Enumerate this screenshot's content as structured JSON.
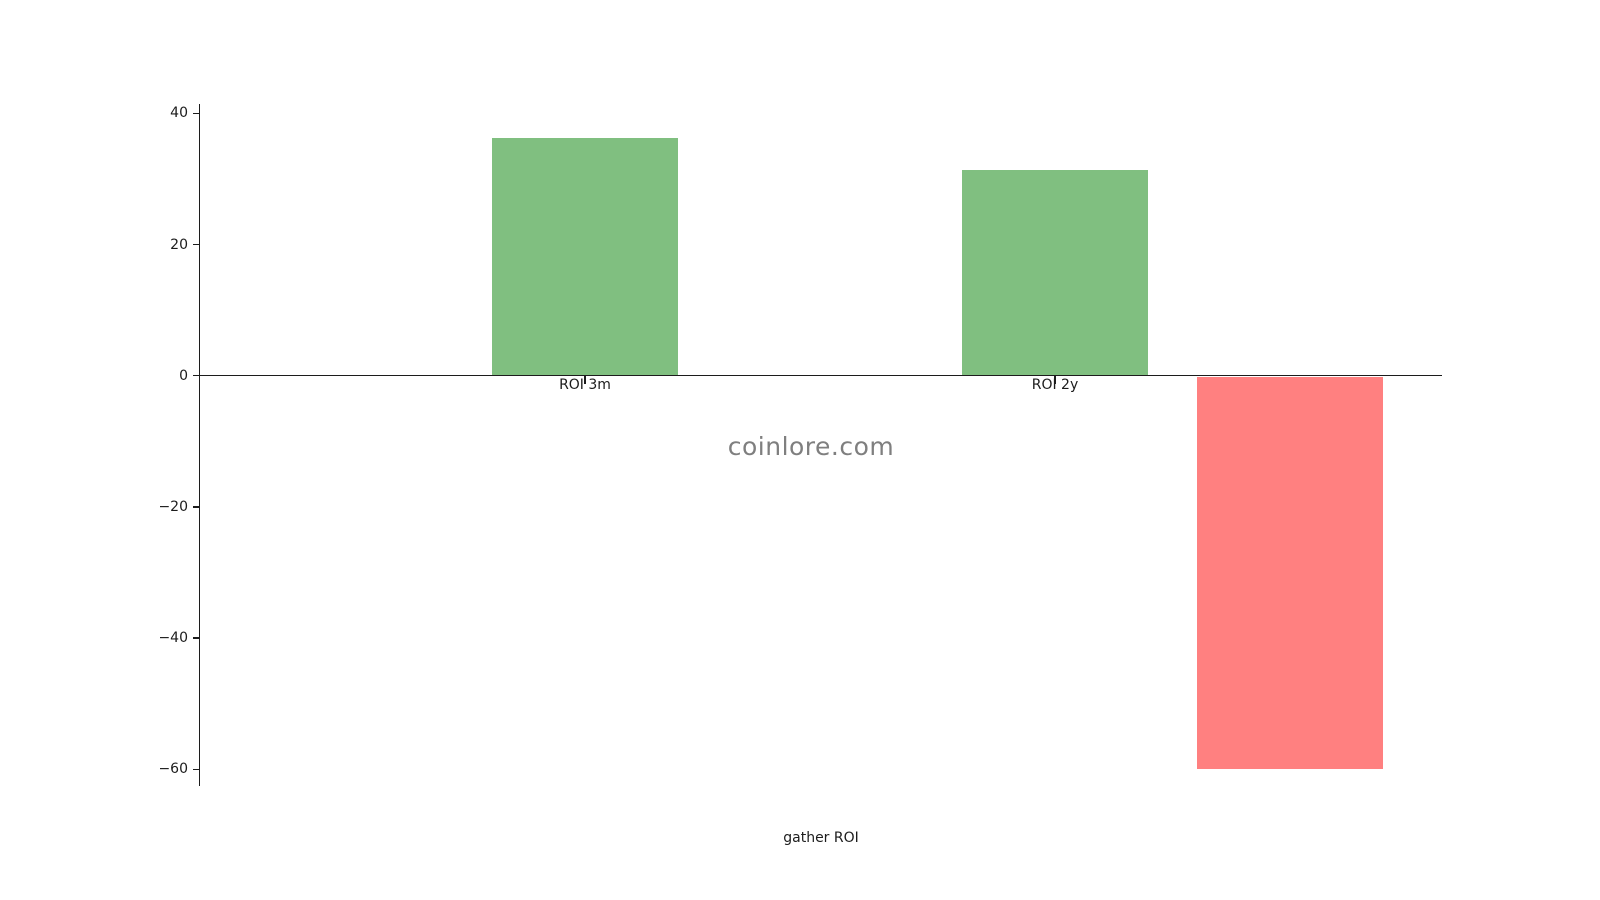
{
  "watermark": {
    "text": "coinlore.com",
    "color": "#7f7f7f"
  },
  "chart_data": {
    "type": "bar",
    "title": "",
    "xlabel": "gather ROI",
    "ylabel": "",
    "categories": [
      "ROI 3m",
      "ROI 2y",
      ""
    ],
    "values": [
      36.3,
      31.4,
      -59.8
    ],
    "bar_colors": [
      "#80bf80",
      "#80bf80",
      "#ff8080"
    ],
    "positive_color": "#80bf80",
    "negative_color": "#ff8080",
    "y_ticks": [
      40,
      20,
      0,
      -20,
      -40,
      -60
    ],
    "y_tick_labels": [
      "40",
      "20",
      "0",
      "−20",
      "−40",
      "−60"
    ],
    "ylim": [
      -62.5,
      41.5
    ],
    "grid": false,
    "legend": "none",
    "axis_color": "#1c1c1c",
    "text_color": "#1c1c1c",
    "background_color": "#ffffff"
  }
}
